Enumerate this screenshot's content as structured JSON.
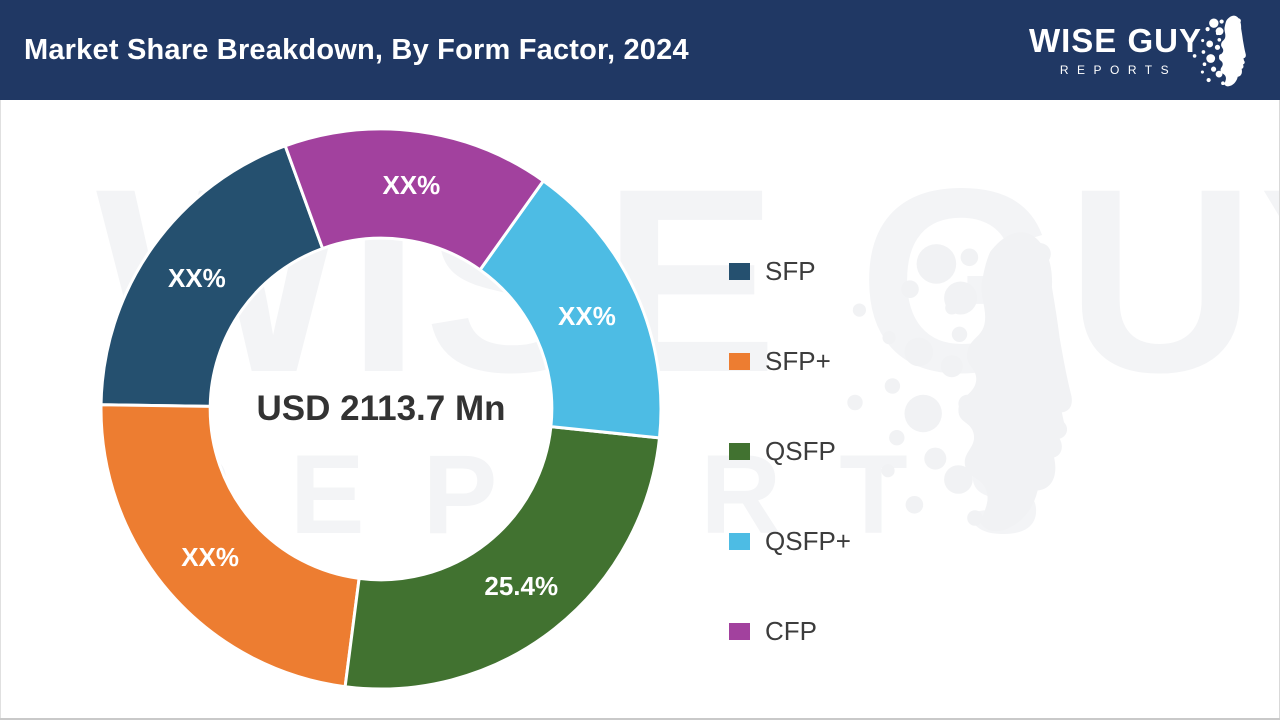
{
  "header": {
    "title": "Market Share Breakdown, By Form Factor, 2024",
    "logo": {
      "line1": "WISE GUY",
      "line2": "REPORTS"
    }
  },
  "watermark": {
    "line1": "WISE GUY",
    "line2": "REPORTS"
  },
  "chart_data": {
    "type": "pie",
    "subtype": "donut",
    "title": "Market Share Breakdown, By Form Factor, 2024",
    "center_label": "USD 2113.7 Mn",
    "total_value": {
      "amount": 2113.7,
      "unit": "USD Mn"
    },
    "legend_position": "right",
    "start_angle_deg": 340,
    "direction": "counterclockwise",
    "donut_hole_ratio": 0.61,
    "separator_color": "#FFFFFF",
    "data_label_color": "#FFFFFF",
    "categories": [
      "SFP",
      "SFP+",
      "QSFP",
      "QSFP+",
      "CFP"
    ],
    "series": [
      {
        "name": "SFP",
        "value_pct": 19.2,
        "data_label": "XX%",
        "color": "#25506F"
      },
      {
        "name": "SFP+",
        "value_pct": 23.2,
        "data_label": "XX%",
        "color": "#ED7D31"
      },
      {
        "name": "QSFP",
        "value_pct": 25.4,
        "data_label": "25.4%",
        "color": "#417230"
      },
      {
        "name": "QSFP+",
        "value_pct": 16.8,
        "data_label": "XX%",
        "color": "#4DBCE4"
      },
      {
        "name": "CFP",
        "value_pct": 15.4,
        "data_label": "XX%",
        "color": "#A2419E"
      }
    ]
  }
}
